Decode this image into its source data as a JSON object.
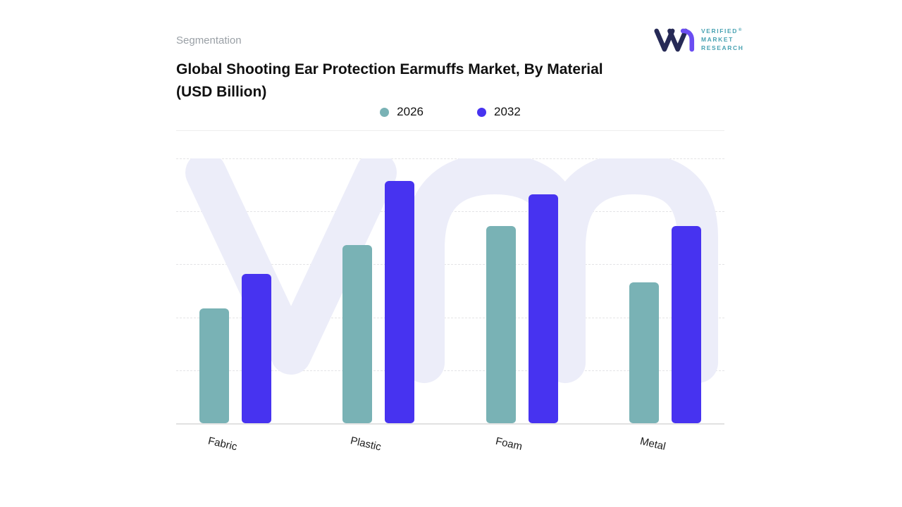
{
  "header": {
    "segmentation": "Segmentation"
  },
  "logo": {
    "brand_lines": [
      "VERIFIED",
      "MARKET",
      "RESEARCH"
    ],
    "registered": "®"
  },
  "title": {
    "line1": "Global Shooting Ear Protection Earmuffs Market, By Material",
    "line2": "(USD Billion)"
  },
  "chart_data": {
    "type": "bar",
    "title": "Global Shooting Ear Protection Earmuffs Market, By Material (USD Billion)",
    "categories": [
      "Fabric",
      "Plastic",
      "Foam",
      "Metal"
    ],
    "series": [
      {
        "name": "2026",
        "color": "#79b2b5",
        "values": [
          43,
          67,
          74,
          53
        ]
      },
      {
        "name": "2032",
        "color": "#4733f0",
        "values": [
          56,
          91,
          86,
          74
        ]
      }
    ],
    "xlabel": "",
    "ylabel": "",
    "ylim": [
      0,
      100
    ],
    "grid": "horizontal-dashed",
    "legend_position": "top-center"
  },
  "colors": {
    "bar_2026": "#79b2b5",
    "bar_2032": "#4733f0",
    "watermark": "#ecedf9",
    "gridline": "#e4e4e6",
    "muted_text": "#9aa0a6",
    "logo_text": "#48a2b2",
    "logo_navy": "#262a56",
    "logo_purple": "#6b4df2"
  }
}
